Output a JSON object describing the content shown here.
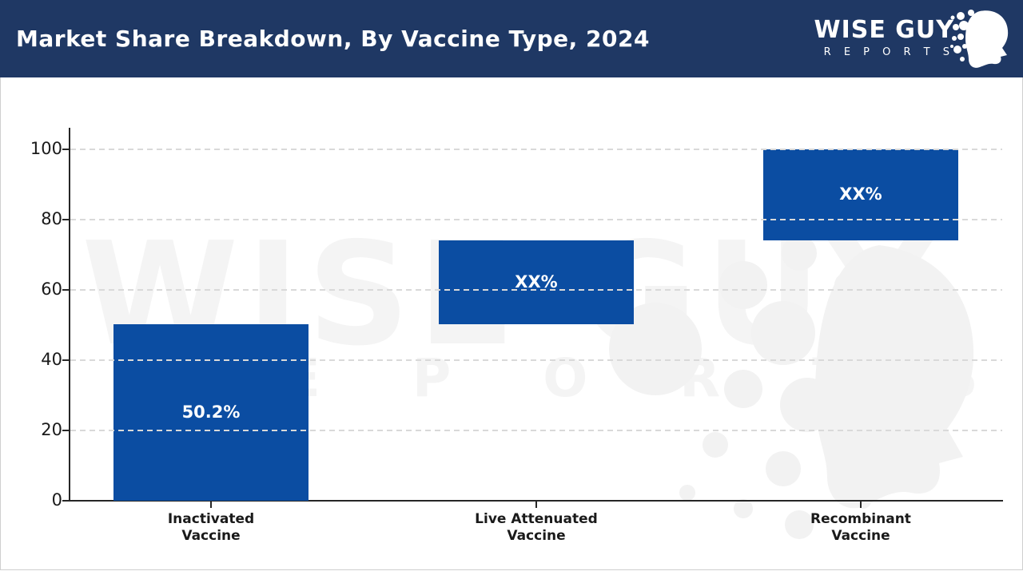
{
  "header": {
    "title": "Market Share Breakdown, By Vaccine Type, 2024",
    "background_color": "#1f3864",
    "logo": {
      "line1": "WISE GUY",
      "line2": "R E P O R T S"
    }
  },
  "watermark": {
    "line1": "WISE GUY",
    "line2": "R E P O R T S"
  },
  "chart_data": {
    "type": "waterfall",
    "title": "Market Share Breakdown, By Vaccine Type, 2024",
    "categories": [
      {
        "line1": "Inactivated",
        "line2": "Vaccine"
      },
      {
        "line1": "Live Attenuated",
        "line2": "Vaccine"
      },
      {
        "line1": "Recombinant",
        "line2": "Vaccine"
      }
    ],
    "segments": [
      {
        "category": "Inactivated Vaccine",
        "start": 0,
        "end": 50.2,
        "label": "50.2%"
      },
      {
        "category": "Live Attenuated Vaccine",
        "start": 50.2,
        "end": 74.1,
        "label": "XX%"
      },
      {
        "category": "Recombinant Vaccine",
        "start": 74.1,
        "end": 100,
        "label": "XX%"
      }
    ],
    "yticks": [
      "0",
      "20",
      "40",
      "60",
      "80",
      "100"
    ],
    "ytick_values": [
      0,
      20,
      40,
      60,
      80,
      100
    ],
    "ylim": [
      0,
      106
    ],
    "grid": "horizontal-dashed",
    "bar_color": "#0b4da2",
    "bar_label_color": "#ffffff",
    "axis_color": "#262626",
    "gridline_color": "#d9d9d9",
    "legend": "none"
  }
}
